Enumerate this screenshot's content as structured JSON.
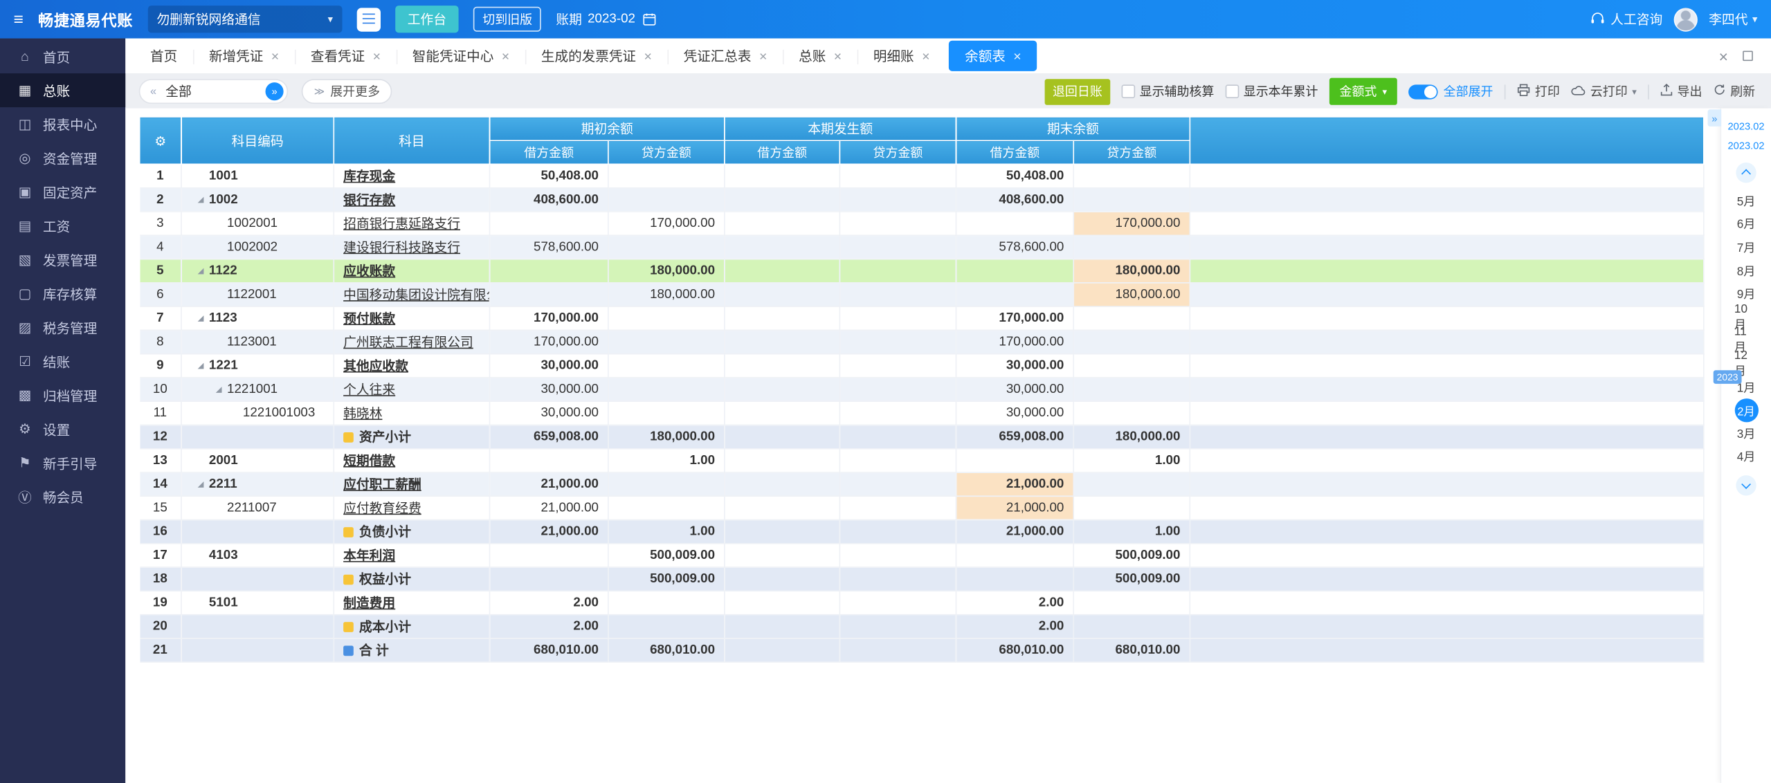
{
  "colors": {
    "accent": "#1890ff",
    "topbar_blue": "#1684ec",
    "sidebar_bg": "#272e52",
    "table_header_blue": "#37a0df",
    "selected_row_green": "#d4f4b8",
    "warn_cell_orange": "#fbe2c3",
    "subtotal_row_blue": "#e2e9f5",
    "green_button": "#4dc01d",
    "olive_button": "#a6c21f",
    "cyan_button": "#3ec4cf"
  },
  "topbar": {
    "brand": "畅捷通易代账",
    "company": "勿删新锐网络通信",
    "workbench": "工作台",
    "switch_old": "切到旧版",
    "period_label": "账期",
    "period_value": "2023-02",
    "support": "人工咨询",
    "username": "李四代"
  },
  "sidebar": {
    "items": [
      {
        "key": "home",
        "label": "首页",
        "icon": "home-icon"
      },
      {
        "key": "general-ledger",
        "label": "总账",
        "icon": "ledger-icon",
        "active": true
      },
      {
        "key": "report-center",
        "label": "报表中心",
        "icon": "report-icon"
      },
      {
        "key": "funds",
        "label": "资金管理",
        "icon": "funds-icon"
      },
      {
        "key": "fixed-assets",
        "label": "固定资产",
        "icon": "assets-icon"
      },
      {
        "key": "payroll",
        "label": "工资",
        "icon": "payroll-icon"
      },
      {
        "key": "invoice",
        "label": "发票管理",
        "icon": "invoice-icon"
      },
      {
        "key": "inventory",
        "label": "库存核算",
        "icon": "inventory-icon"
      },
      {
        "key": "tax",
        "label": "税务管理",
        "icon": "tax-icon"
      },
      {
        "key": "closing",
        "label": "结账",
        "icon": "closing-icon"
      },
      {
        "key": "archive",
        "label": "归档管理",
        "icon": "archive-icon"
      },
      {
        "key": "settings",
        "label": "设置",
        "icon": "settings-icon"
      },
      {
        "key": "guide",
        "label": "新手引导",
        "icon": "guide-icon"
      },
      {
        "key": "member",
        "label": "畅会员",
        "icon": "member-icon"
      }
    ]
  },
  "tabs": {
    "items": [
      {
        "key": "home",
        "label": "首页",
        "closable": false
      },
      {
        "key": "new-voucher",
        "label": "新增凭证",
        "closable": true
      },
      {
        "key": "view-voucher",
        "label": "查看凭证",
        "closable": true
      },
      {
        "key": "smart-voucher-center",
        "label": "智能凭证中心",
        "closable": true
      },
      {
        "key": "generated-invoice-voucher",
        "label": "生成的发票凭证",
        "closable": true
      },
      {
        "key": "voucher-summary",
        "label": "凭证汇总表",
        "closable": true
      },
      {
        "key": "general-ledger",
        "label": "总账",
        "closable": true
      },
      {
        "key": "detail-ledger",
        "label": "明细账",
        "closable": true
      },
      {
        "key": "balance-sheet",
        "label": "余额表",
        "closable": true,
        "active": true
      }
    ]
  },
  "toolbar": {
    "filter": {
      "value": "全部"
    },
    "expand_more": "展开更多",
    "return_day_book": "退回日账",
    "checkbox_aux": "显示辅助核算",
    "checkbox_ytd": "显示本年累计",
    "amount_style": "金额式",
    "expand_all": "全部展开",
    "actions": [
      {
        "key": "print",
        "label": "打印",
        "icon": "printer-icon",
        "caret": false,
        "divider_before": true
      },
      {
        "key": "cloud-print",
        "label": "云打印",
        "icon": "cloud-icon",
        "caret": true,
        "divider_before": false
      },
      {
        "key": "export",
        "label": "导出",
        "icon": "export-icon",
        "caret": false,
        "divider_before": true
      },
      {
        "key": "refresh",
        "label": "刷新",
        "icon": "refresh-icon",
        "caret": false,
        "divider_before": false
      }
    ]
  },
  "table": {
    "headers": {
      "code": "科目编码",
      "subject": "科目",
      "debit": "借方金额",
      "credit": "贷方金额",
      "groups": [
        {
          "label": "期初余额"
        },
        {
          "label": "本期发生额"
        },
        {
          "label": "期末余额"
        }
      ]
    },
    "rows": [
      {
        "no": "1",
        "code": "1001",
        "level": 1,
        "subject": "库存现金",
        "link": true,
        "bold": true,
        "values": [
          "50,408.00",
          "",
          "",
          "",
          "50,408.00",
          ""
        ]
      },
      {
        "no": "2",
        "code": "1002",
        "level": 1,
        "expandable": true,
        "subject": "银行存款",
        "link": true,
        "bold": true,
        "values": [
          "408,600.00",
          "",
          "",
          "",
          "408,600.00",
          ""
        ]
      },
      {
        "no": "3",
        "code": "1002001",
        "level": 2,
        "subject": "招商银行惠延路支行",
        "link": true,
        "values": [
          "",
          "170,000.00",
          "",
          "",
          "",
          "170,000.00"
        ],
        "warn": [
          5
        ]
      },
      {
        "no": "4",
        "code": "1002002",
        "level": 2,
        "subject": "建设银行科技路支行",
        "link": true,
        "values": [
          "578,600.00",
          "",
          "",
          "",
          "578,600.00",
          ""
        ]
      },
      {
        "no": "5",
        "code": "1122",
        "level": 1,
        "expandable": true,
        "subject": "应收账款",
        "link": true,
        "bold": true,
        "selected": true,
        "values": [
          "",
          "180,000.00",
          "",
          "",
          "",
          "180,000.00"
        ],
        "warn": [
          5
        ]
      },
      {
        "no": "6",
        "code": "1122001",
        "level": 2,
        "subject": "中国移动集团设计院有限公司划",
        "link": true,
        "values": [
          "",
          "180,000.00",
          "",
          "",
          "",
          "180,000.00"
        ],
        "warn": [
          5
        ]
      },
      {
        "no": "7",
        "code": "1123",
        "level": 1,
        "expandable": true,
        "subject": "预付账款",
        "link": true,
        "bold": true,
        "values": [
          "170,000.00",
          "",
          "",
          "",
          "170,000.00",
          ""
        ]
      },
      {
        "no": "8",
        "code": "1123001",
        "level": 2,
        "subject": "广州联志工程有限公司",
        "link": true,
        "values": [
          "170,000.00",
          "",
          "",
          "",
          "170,000.00",
          ""
        ]
      },
      {
        "no": "9",
        "code": "1221",
        "level": 1,
        "expandable": true,
        "subject": "其他应收款",
        "link": true,
        "bold": true,
        "values": [
          "30,000.00",
          "",
          "",
          "",
          "30,000.00",
          ""
        ]
      },
      {
        "no": "10",
        "code": "1221001",
        "level": 2,
        "expandable": true,
        "subject": "个人往来",
        "link": true,
        "values": [
          "30,000.00",
          "",
          "",
          "",
          "30,000.00",
          ""
        ]
      },
      {
        "no": "11",
        "code": "1221001003",
        "level": 3,
        "subject": "韩晓林",
        "link": true,
        "values": [
          "30,000.00",
          "",
          "",
          "",
          "30,000.00",
          ""
        ]
      },
      {
        "no": "12",
        "subject": "资产小计",
        "subtotal": true,
        "icon": "yellow",
        "values": [
          "659,008.00",
          "180,000.00",
          "",
          "",
          "659,008.00",
          "180,000.00"
        ]
      },
      {
        "no": "13",
        "code": "2001",
        "level": 1,
        "subject": "短期借款",
        "link": true,
        "bold": true,
        "values": [
          "",
          "1.00",
          "",
          "",
          "",
          "1.00"
        ]
      },
      {
        "no": "14",
        "code": "2211",
        "level": 1,
        "expandable": true,
        "subject": "应付职工薪酬",
        "link": true,
        "bold": true,
        "values": [
          "21,000.00",
          "",
          "",
          "",
          "21,000.00",
          ""
        ],
        "warn": [
          4
        ]
      },
      {
        "no": "15",
        "code": "2211007",
        "level": 2,
        "subject": "应付教育经费",
        "link": true,
        "values": [
          "21,000.00",
          "",
          "",
          "",
          "21,000.00",
          ""
        ],
        "warn": [
          4
        ]
      },
      {
        "no": "16",
        "subject": "负债小计",
        "subtotal": true,
        "icon": "yellow",
        "values": [
          "21,000.00",
          "1.00",
          "",
          "",
          "21,000.00",
          "1.00"
        ]
      },
      {
        "no": "17",
        "code": "4103",
        "level": 1,
        "subject": "本年利润",
        "link": true,
        "bold": true,
        "values": [
          "",
          "500,009.00",
          "",
          "",
          "",
          "500,009.00"
        ]
      },
      {
        "no": "18",
        "subject": "权益小计",
        "subtotal": true,
        "icon": "yellow",
        "values": [
          "",
          "500,009.00",
          "",
          "",
          "",
          "500,009.00"
        ]
      },
      {
        "no": "19",
        "code": "5101",
        "level": 1,
        "subject": "制造费用",
        "link": true,
        "bold": true,
        "values": [
          "2.00",
          "",
          "",
          "",
          "2.00",
          ""
        ]
      },
      {
        "no": "20",
        "subject": "成本小计",
        "subtotal": true,
        "icon": "yellow",
        "values": [
          "2.00",
          "",
          "",
          "",
          "2.00",
          ""
        ]
      },
      {
        "no": "21",
        "subject": "合  计",
        "subtotal": true,
        "icon": "blue",
        "values": [
          "680,010.00",
          "680,010.00",
          "",
          "",
          "680,010.00",
          "680,010.00"
        ]
      }
    ]
  },
  "period_panel": {
    "collapse_handle": "»",
    "range": [
      "2023.02",
      "2023.02"
    ],
    "year_badge": "2023",
    "months": [
      "5月",
      "6月",
      "7月",
      "8月",
      "9月",
      "10月",
      "11月",
      "12月",
      "1月",
      "2月",
      "3月",
      "4月"
    ],
    "active_month": "2月"
  }
}
